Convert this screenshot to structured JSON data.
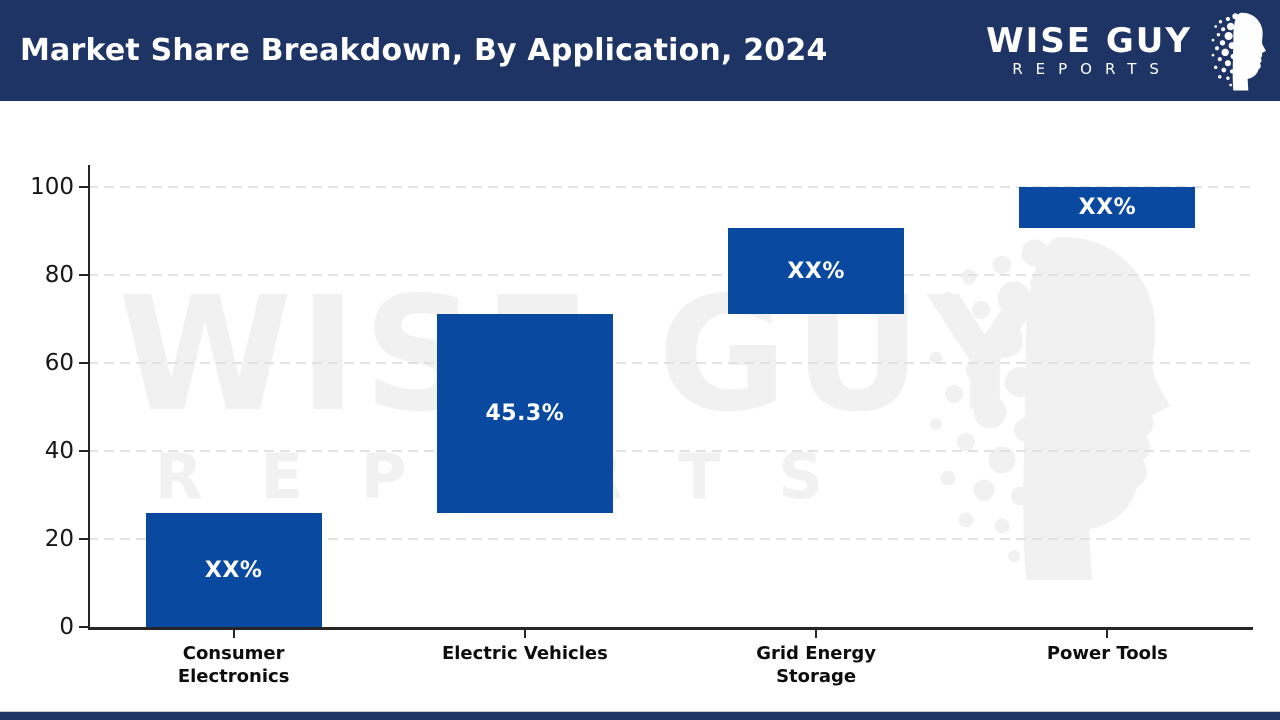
{
  "header": {
    "title": "Market Share Breakdown, By Application, 2024",
    "logo": {
      "wordmark": "WISE GUY",
      "subtitle": "REPORTS"
    }
  },
  "watermark": {
    "wordmark": "WISE GUY",
    "subtitle": "REPORTS"
  },
  "chart_data": {
    "type": "bar",
    "subtype": "waterfall",
    "title": "Market Share Breakdown, By Application, 2024",
    "categories": [
      "Consumer Electronics",
      "Electric Vehicles",
      "Grid Energy Storage",
      "Power Tools"
    ],
    "axis_tick_labels": [
      "Consumer\nElectronics",
      "Electric Vehicles",
      "Grid Energy\nStorage",
      "Power Tools"
    ],
    "bars": [
      {
        "category": "Consumer Electronics",
        "start": 0,
        "end": 25.9,
        "label": "XX%"
      },
      {
        "category": "Electric Vehicles",
        "start": 25.9,
        "end": 71.2,
        "label": "45.3%"
      },
      {
        "category": "Grid Energy Storage",
        "start": 71.2,
        "end": 90.6,
        "label": "XX%"
      },
      {
        "category": "Power Tools",
        "start": 90.6,
        "end": 100,
        "label": "XX%"
      }
    ],
    "y_ticks": [
      0,
      20,
      40,
      60,
      80,
      100
    ],
    "ylim": [
      0,
      105
    ],
    "xlabel": "",
    "ylabel": "",
    "grid": "horizontal-dashed",
    "legend": "none",
    "bar_color": "#0a49a0",
    "bar_label_color": "#ffffff"
  },
  "colors": {
    "header_bg": "#1e3465",
    "footer_bg": "#1e3465",
    "watermark": "#f1f1f1",
    "grid_line": "#e2e2e2",
    "axis_line": "#262626",
    "tick_label": "#161616"
  }
}
